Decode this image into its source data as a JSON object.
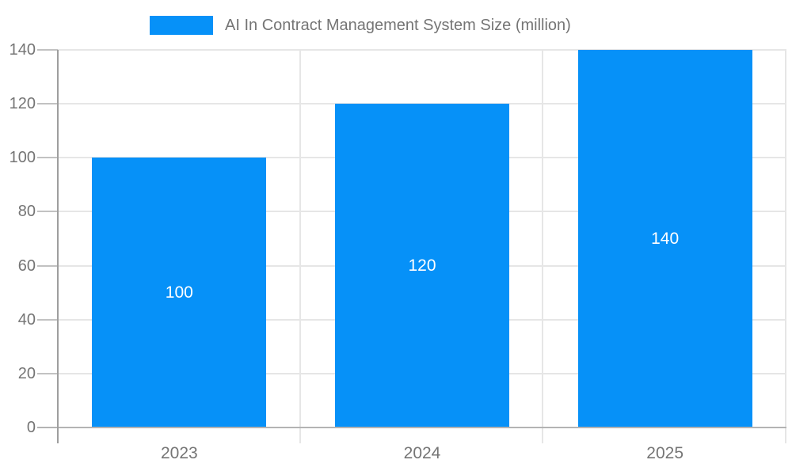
{
  "chart_data": {
    "type": "bar",
    "title": "AI In Contract Management System Size (million)",
    "categories": [
      "2023",
      "2024",
      "2025"
    ],
    "values": [
      100,
      120,
      140
    ],
    "data_labels": [
      "100",
      "120",
      "140"
    ],
    "series": [
      {
        "name": "AI In Contract Management System Size (million)",
        "values": [
          100,
          120,
          140
        ]
      }
    ],
    "yticks": [
      0,
      20,
      40,
      60,
      80,
      100,
      120,
      140
    ],
    "ylim": [
      0,
      140
    ],
    "xlabel": "",
    "ylabel": "",
    "grid": true,
    "legend_position": "top",
    "colors": {
      "bar": "#0691f8",
      "legend_swatch": "#0691f8",
      "axis_line": "#b3b3b3",
      "y_axis_line": "#9e9e9e",
      "gridline": "#e6e6e6",
      "tick": "#c2c2c2",
      "tick_label": "#757575",
      "value_label": "#ffffff",
      "background": "#ffffff"
    }
  }
}
